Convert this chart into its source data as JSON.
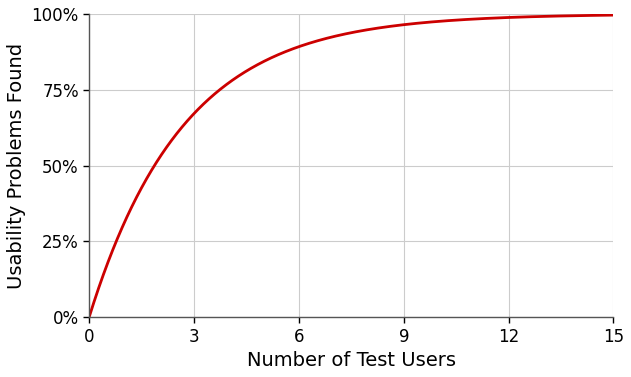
{
  "title": "",
  "xlabel": "Number of Test Users",
  "ylabel": "Usability Problems Found",
  "curve_color": "#cc0000",
  "curve_linewidth": 2.0,
  "p": 0.31,
  "x_min": 0,
  "x_max": 15,
  "y_min": 0,
  "y_max": 1.0,
  "xticks": [
    0,
    3,
    6,
    9,
    12,
    15
  ],
  "yticks": [
    0,
    0.25,
    0.5,
    0.75,
    1.0
  ],
  "grid_color": "#cccccc",
  "background_color": "#ffffff",
  "tick_label_fontsize": 12,
  "axis_label_fontsize": 14
}
